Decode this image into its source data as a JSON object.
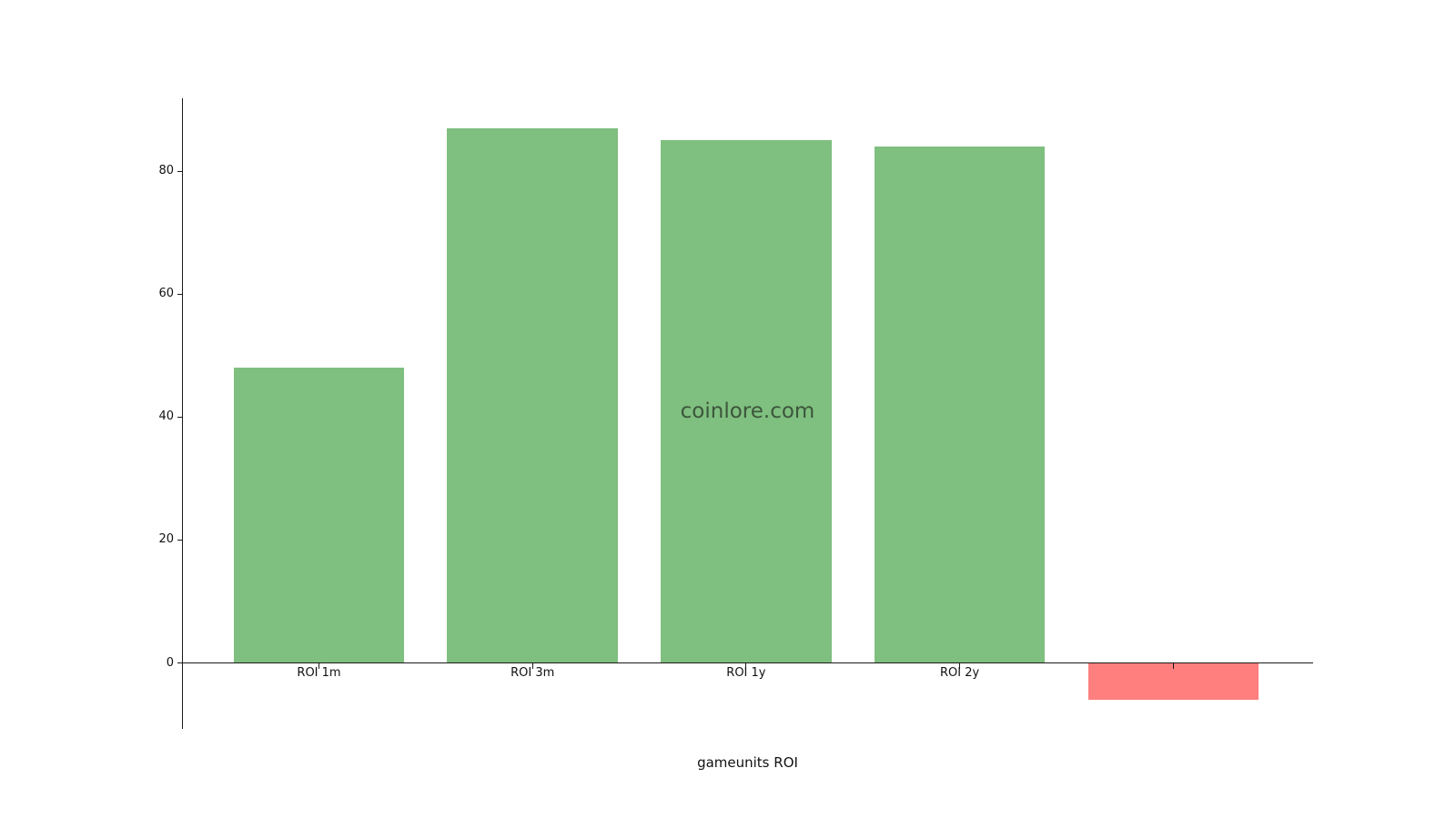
{
  "watermark": "coinlore.com",
  "chart_data": {
    "type": "bar",
    "categories": [
      "ROI 1m",
      "ROI 3m",
      "ROI 1y",
      "ROI 2y",
      ""
    ],
    "values": [
      48,
      87,
      85,
      84,
      -6
    ],
    "bar_colors": [
      "#7fbf7f",
      "#7fbf7f",
      "#7fbf7f",
      "#7fbf7f",
      "#ff7f7f"
    ],
    "positive_color": "#7fbf7f",
    "negative_color": "#ff7f7f",
    "title": "",
    "xlabel": "gameunits ROI",
    "ylabel": "",
    "yticks": [
      0,
      20,
      40,
      60,
      80
    ],
    "ylim": [
      -10.5,
      92
    ],
    "grid": false,
    "legend_position": "none",
    "watermark": "coinlore.com"
  }
}
